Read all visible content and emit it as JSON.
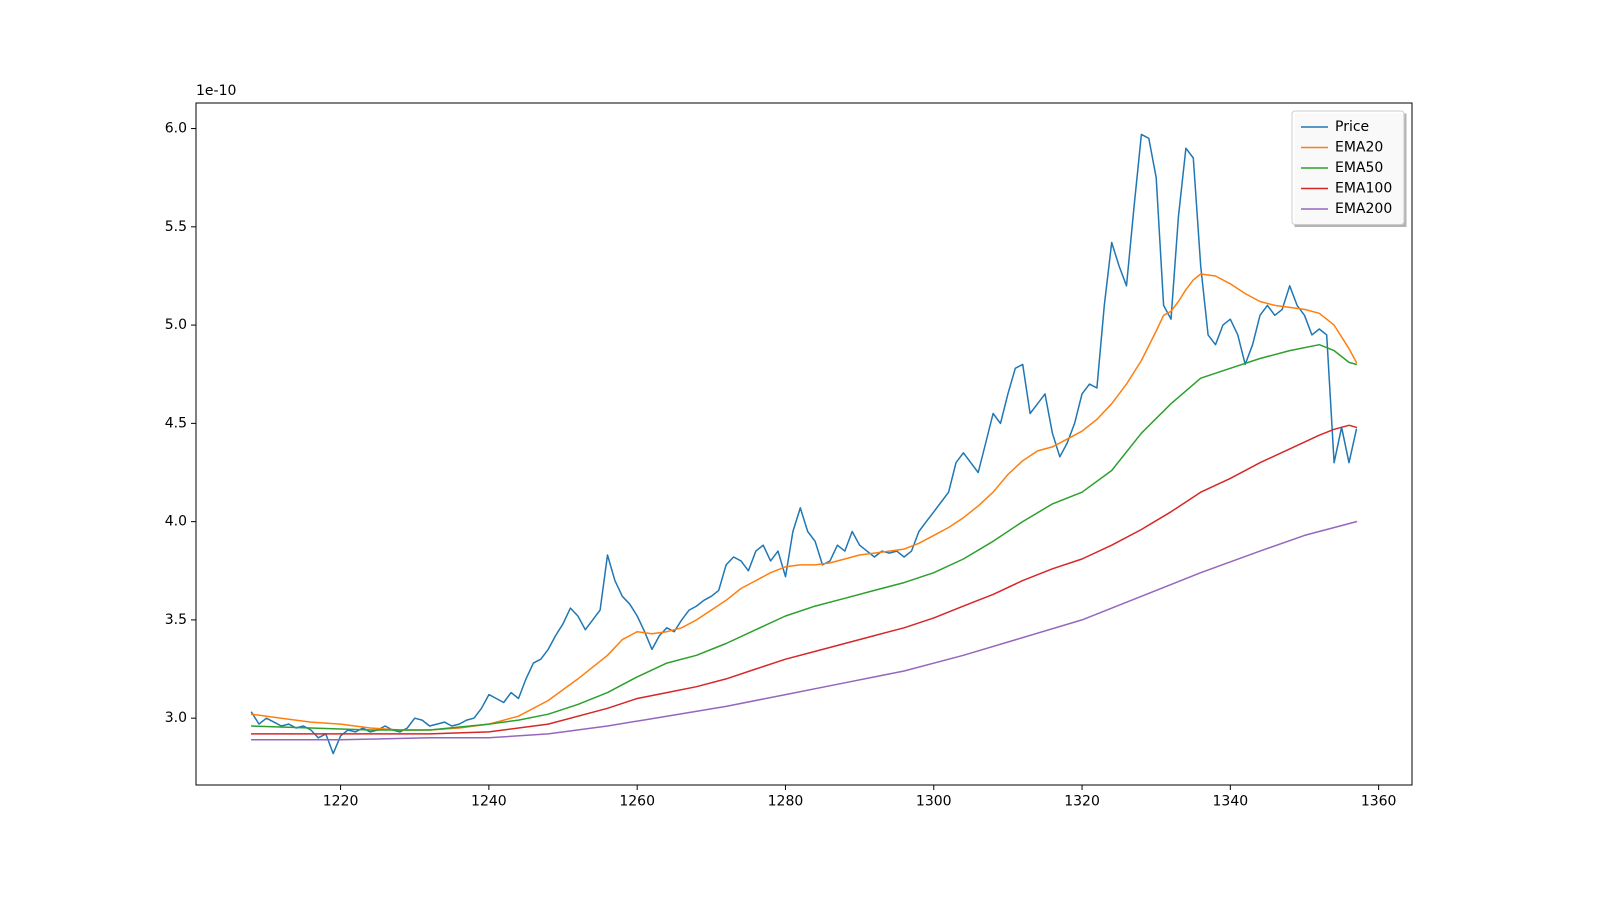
{
  "figure": {
    "background": "#ffffff"
  },
  "chart_data": {
    "type": "line",
    "title": "",
    "xlabel": "",
    "ylabel": "",
    "y_offset_text": "1e-10",
    "y_unit_scale": 1e-10,
    "xlim": [
      1200.5,
      1364.5
    ],
    "ylim": [
      2.66,
      6.13
    ],
    "xticks": [
      1220,
      1240,
      1260,
      1280,
      1300,
      1320,
      1340,
      1360
    ],
    "yticks": [
      3.0,
      3.5,
      4.0,
      4.5,
      5.0,
      5.5,
      6.0
    ],
    "grid": false,
    "legend": {
      "position": "upper right",
      "entries": [
        "Price",
        "EMA20",
        "EMA50",
        "EMA100",
        "EMA200"
      ]
    },
    "series": [
      {
        "name": "Price",
        "color": "#1f77b4",
        "x_start": 1208,
        "x_step": 1,
        "y": [
          3.03,
          2.97,
          3.0,
          2.98,
          2.96,
          2.97,
          2.95,
          2.96,
          2.94,
          2.9,
          2.92,
          2.82,
          2.91,
          2.94,
          2.93,
          2.95,
          2.93,
          2.94,
          2.96,
          2.94,
          2.93,
          2.95,
          3.0,
          2.99,
          2.96,
          2.97,
          2.98,
          2.96,
          2.97,
          2.99,
          3.0,
          3.05,
          3.12,
          3.1,
          3.08,
          3.13,
          3.1,
          3.2,
          3.28,
          3.3,
          3.35,
          3.42,
          3.48,
          3.56,
          3.52,
          3.45,
          3.5,
          3.55,
          3.83,
          3.7,
          3.62,
          3.58,
          3.52,
          3.44,
          3.35,
          3.42,
          3.46,
          3.44,
          3.5,
          3.55,
          3.57,
          3.6,
          3.62,
          3.65,
          3.78,
          3.82,
          3.8,
          3.75,
          3.85,
          3.88,
          3.8,
          3.85,
          3.72,
          3.95,
          4.07,
          3.95,
          3.9,
          3.78,
          3.8,
          3.88,
          3.85,
          3.95,
          3.88,
          3.85,
          3.82,
          3.85,
          3.84,
          3.85,
          3.82,
          3.85,
          3.95,
          4.0,
          4.05,
          4.1,
          4.15,
          4.3,
          4.35,
          4.3,
          4.25,
          4.4,
          4.55,
          4.5,
          4.65,
          4.78,
          4.8,
          4.55,
          4.6,
          4.65,
          4.45,
          4.33,
          4.4,
          4.5,
          4.65,
          4.7,
          4.68,
          5.1,
          5.42,
          5.3,
          5.2,
          5.6,
          5.97,
          5.95,
          5.75,
          5.1,
          5.03,
          5.55,
          5.9,
          5.85,
          5.3,
          4.95,
          4.9,
          5.0,
          5.03,
          4.95,
          4.8,
          4.9,
          5.05,
          5.1,
          5.05,
          5.08,
          5.2,
          5.1,
          5.05,
          4.95,
          4.98,
          4.95,
          4.3,
          4.48,
          4.3,
          4.47
        ]
      },
      {
        "name": "EMA20",
        "color": "#ff7f0e",
        "x": [
          1208,
          1212,
          1216,
          1220,
          1224,
          1228,
          1232,
          1236,
          1240,
          1244,
          1248,
          1252,
          1256,
          1258,
          1260,
          1262,
          1264,
          1266,
          1268,
          1270,
          1272,
          1274,
          1276,
          1278,
          1280,
          1282,
          1284,
          1286,
          1288,
          1290,
          1292,
          1294,
          1296,
          1298,
          1300,
          1302,
          1304,
          1306,
          1308,
          1310,
          1312,
          1314,
          1316,
          1318,
          1320,
          1322,
          1324,
          1326,
          1328,
          1330,
          1331,
          1332,
          1333,
          1334,
          1335,
          1336,
          1338,
          1340,
          1342,
          1344,
          1346,
          1348,
          1350,
          1352,
          1354,
          1356,
          1357
        ],
        "y": [
          3.02,
          3.0,
          2.98,
          2.97,
          2.95,
          2.94,
          2.94,
          2.95,
          2.97,
          3.01,
          3.09,
          3.2,
          3.32,
          3.4,
          3.44,
          3.43,
          3.44,
          3.46,
          3.5,
          3.55,
          3.6,
          3.66,
          3.7,
          3.74,
          3.77,
          3.78,
          3.78,
          3.79,
          3.81,
          3.83,
          3.84,
          3.85,
          3.86,
          3.89,
          3.93,
          3.97,
          4.02,
          4.08,
          4.15,
          4.24,
          4.31,
          4.36,
          4.38,
          4.42,
          4.46,
          4.52,
          4.6,
          4.7,
          4.82,
          4.97,
          5.05,
          5.07,
          5.12,
          5.18,
          5.23,
          5.26,
          5.25,
          5.21,
          5.16,
          5.12,
          5.1,
          5.09,
          5.08,
          5.06,
          5.0,
          4.88,
          4.81
        ]
      },
      {
        "name": "EMA50",
        "color": "#2ca02c",
        "x": [
          1208,
          1216,
          1224,
          1232,
          1240,
          1244,
          1248,
          1252,
          1256,
          1260,
          1264,
          1268,
          1272,
          1276,
          1280,
          1284,
          1288,
          1292,
          1296,
          1300,
          1304,
          1308,
          1312,
          1316,
          1320,
          1324,
          1328,
          1332,
          1336,
          1340,
          1344,
          1348,
          1352,
          1354,
          1356,
          1357
        ],
        "y": [
          2.96,
          2.95,
          2.94,
          2.94,
          2.97,
          2.99,
          3.02,
          3.07,
          3.13,
          3.21,
          3.28,
          3.32,
          3.38,
          3.45,
          3.52,
          3.57,
          3.61,
          3.65,
          3.69,
          3.74,
          3.81,
          3.9,
          4.0,
          4.09,
          4.15,
          4.26,
          4.45,
          4.6,
          4.73,
          4.78,
          4.83,
          4.87,
          4.9,
          4.87,
          4.81,
          4.8
        ]
      },
      {
        "name": "EMA100",
        "color": "#d62728",
        "x": [
          1208,
          1216,
          1224,
          1232,
          1240,
          1248,
          1256,
          1260,
          1264,
          1268,
          1272,
          1276,
          1280,
          1284,
          1288,
          1292,
          1296,
          1300,
          1304,
          1308,
          1312,
          1316,
          1320,
          1324,
          1328,
          1332,
          1336,
          1340,
          1344,
          1348,
          1352,
          1354,
          1356,
          1357
        ],
        "y": [
          2.92,
          2.92,
          2.92,
          2.92,
          2.93,
          2.97,
          3.05,
          3.1,
          3.13,
          3.16,
          3.2,
          3.25,
          3.3,
          3.34,
          3.38,
          3.42,
          3.46,
          3.51,
          3.57,
          3.63,
          3.7,
          3.76,
          3.81,
          3.88,
          3.96,
          4.05,
          4.15,
          4.22,
          4.3,
          4.37,
          4.44,
          4.47,
          4.49,
          4.48
        ]
      },
      {
        "name": "EMA200",
        "color": "#9467bd",
        "x": [
          1208,
          1220,
          1232,
          1240,
          1248,
          1256,
          1264,
          1272,
          1280,
          1288,
          1296,
          1304,
          1312,
          1320,
          1328,
          1336,
          1344,
          1350,
          1356,
          1357
        ],
        "y": [
          2.89,
          2.89,
          2.9,
          2.9,
          2.92,
          2.96,
          3.01,
          3.06,
          3.12,
          3.18,
          3.24,
          3.32,
          3.41,
          3.5,
          3.62,
          3.74,
          3.85,
          3.93,
          3.99,
          4.0
        ]
      }
    ]
  }
}
